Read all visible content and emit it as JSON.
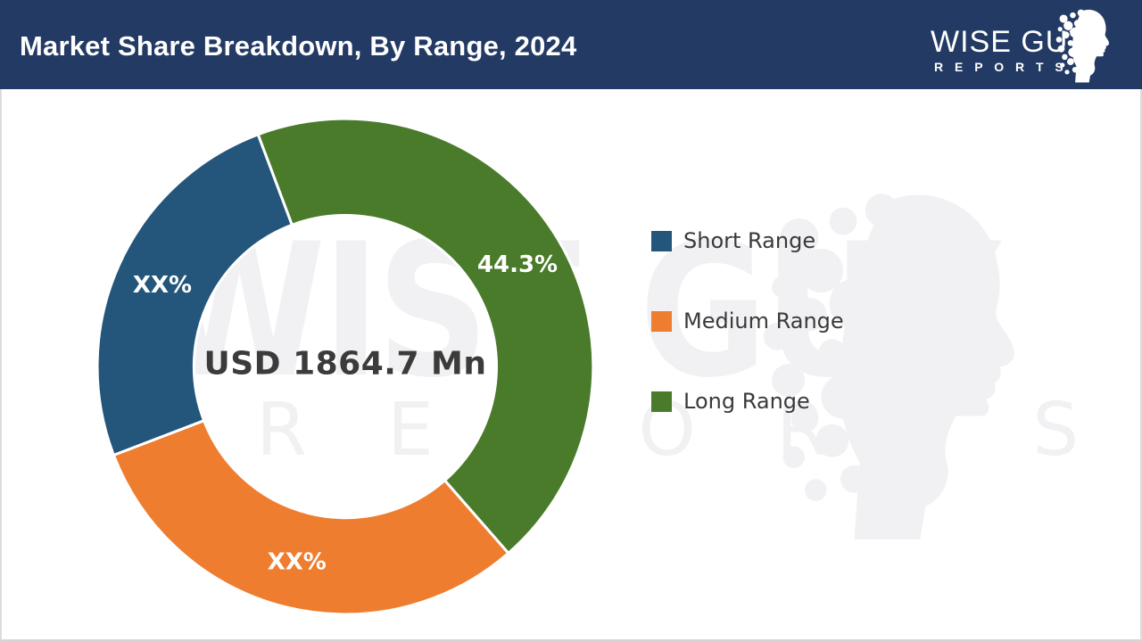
{
  "header": {
    "title": "Market Share Breakdown, By Range, 2024",
    "bg_color": "#233A64",
    "logo": {
      "line1": "WISE GUY",
      "line2": "R E P O R T S"
    }
  },
  "watermark": {
    "line1": "WISE GUY",
    "line2": "R E P O R T S"
  },
  "chart_data": {
    "type": "pie",
    "subtype": "donut",
    "title": "Market Share Breakdown, By Range, 2024",
    "center_label": "USD 1864.7 Mn",
    "start_angle_deg": -20.6,
    "clockwise": true,
    "inner_radius_ratio": 0.61,
    "legend_position": "right",
    "segments": [
      {
        "name": "Long Range",
        "value": 44.3,
        "label": "44.3%",
        "color": "#4A7B2B"
      },
      {
        "name": "Medium Range",
        "value": 30.6,
        "label": "XX%",
        "color": "#EE7D30"
      },
      {
        "name": "Short Range",
        "value": 25.1,
        "label": "XX%",
        "color": "#24567C"
      }
    ]
  },
  "legend": {
    "items": [
      {
        "label": "Short Range",
        "color": "#24567C"
      },
      {
        "label": "Medium Range",
        "color": "#EE7D30"
      },
      {
        "label": "Long Range",
        "color": "#4A7B2B"
      }
    ]
  },
  "colors": {
    "header_bg": "#233A64",
    "watermark": "#F1F1F4",
    "center_text": "#3B3B3B",
    "legend_text": "#3A3A3A",
    "border": "#D9D9D9",
    "segment_divider": "#FFFFFF"
  }
}
